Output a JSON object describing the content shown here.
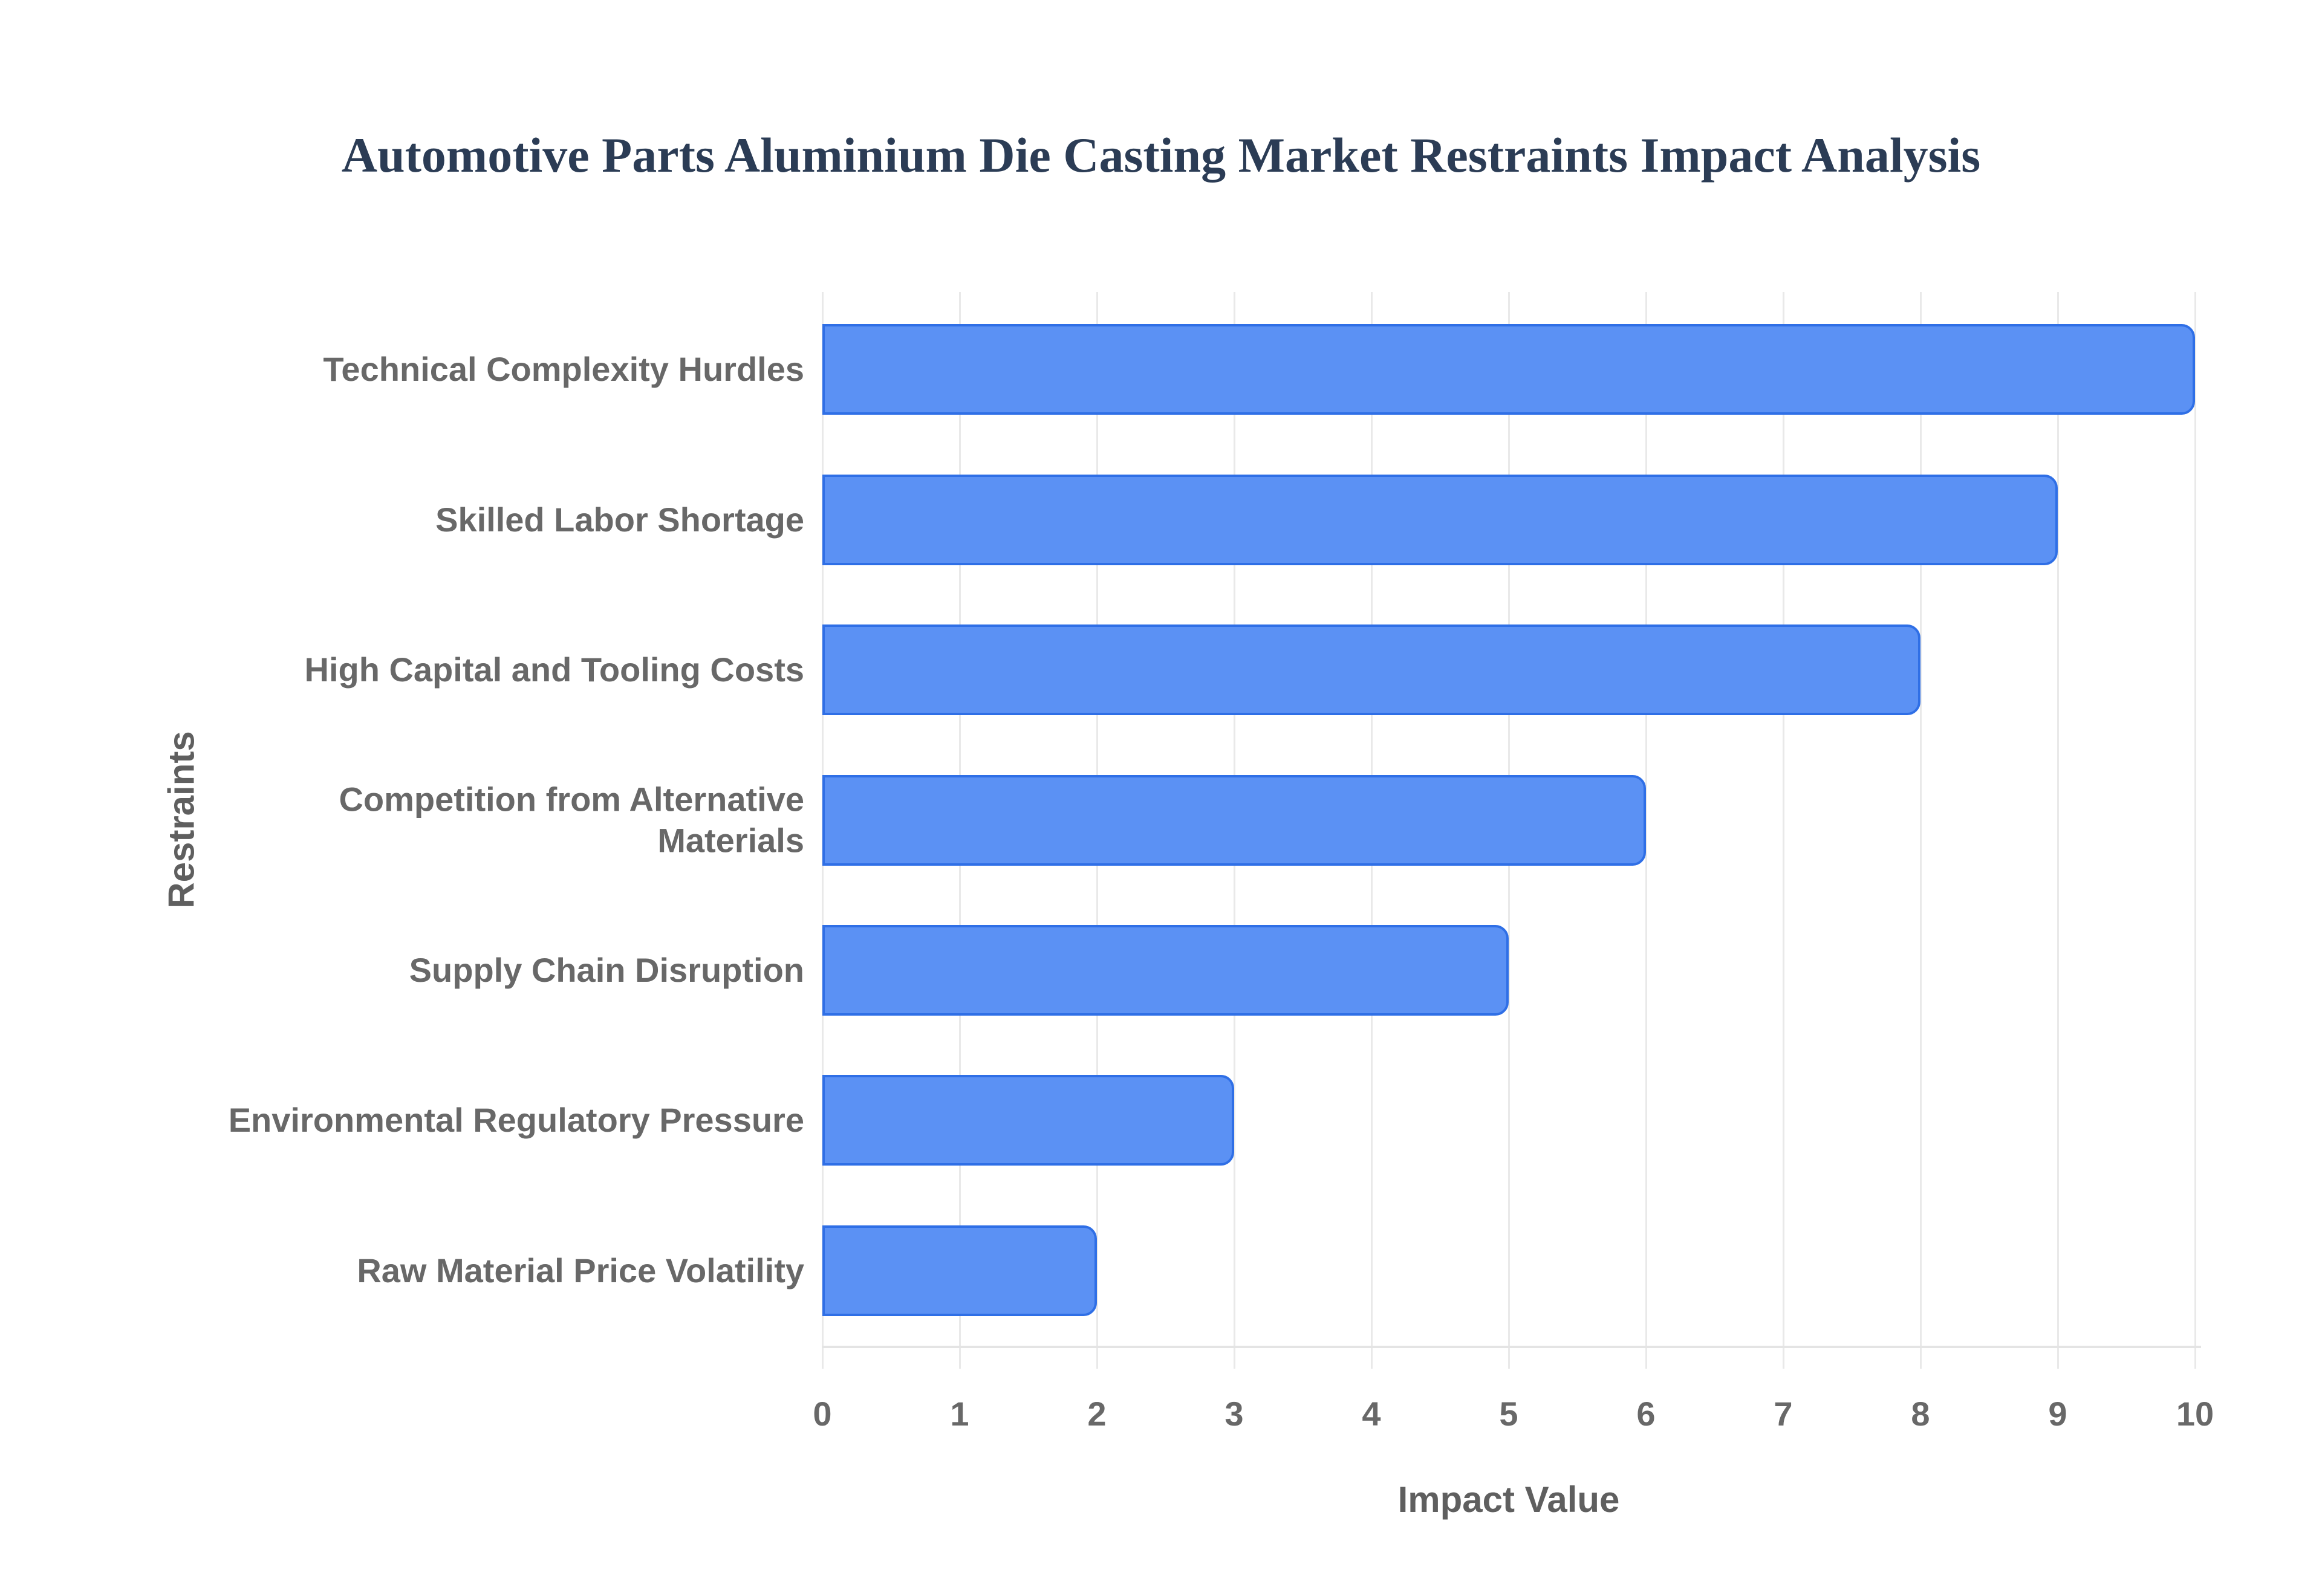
{
  "page": {
    "background": "#ffffff"
  },
  "chart_data": {
    "type": "bar",
    "orientation": "horizontal",
    "title": "Automotive Parts Aluminium Die Casting Market Restraints Impact Analysis",
    "xlabel": "Impact Value",
    "ylabel": "Restraints",
    "categories": [
      "Technical Complexity Hurdles",
      "Skilled Labor Shortage",
      "High Capital and Tooling Costs",
      "Competition from Alternative Materials",
      "Supply Chain Disruption",
      "Environmental Regulatory Pressure",
      "Raw Material Price Volatility"
    ],
    "values": [
      10,
      9,
      8,
      6,
      5,
      3,
      2
    ],
    "xlim": [
      0,
      10
    ],
    "xticks": [
      0,
      1,
      2,
      3,
      4,
      5,
      6,
      7,
      8,
      9,
      10
    ],
    "grid": true,
    "legend": false,
    "colors": {
      "bar_fill": "#5b91f4",
      "bar_border": "#2f6fe6",
      "title_text": "#2b3c55",
      "label_text": "#686868",
      "axis_title_text": "#5f5f5f",
      "gridline": "#e9e9e9",
      "axis_line": "#e4e4e4",
      "background": "#ffffff"
    }
  }
}
